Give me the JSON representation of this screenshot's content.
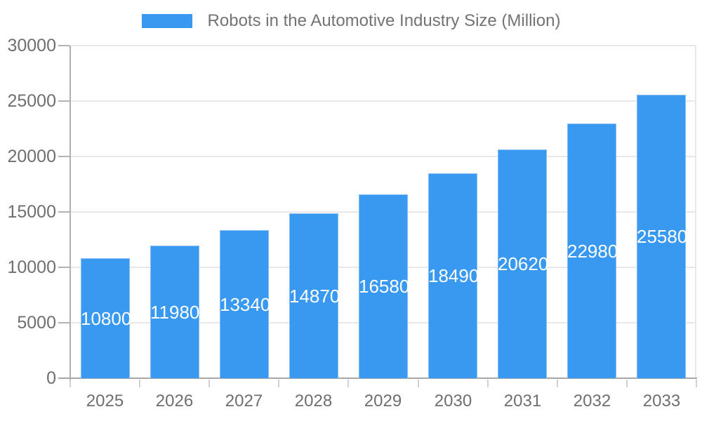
{
  "chart_data": {
    "type": "bar",
    "title": "Robots in the Automotive Industry Size (Million)",
    "categories": [
      "2025",
      "2026",
      "2027",
      "2028",
      "2029",
      "2030",
      "2031",
      "2032",
      "2033"
    ],
    "values": [
      10800,
      11980,
      13340,
      14870,
      16580,
      18490,
      20620,
      22980,
      25580
    ],
    "xlabel": "",
    "ylabel": "",
    "ylim": [
      0,
      30000
    ],
    "ytick_step": 5000,
    "ytick_labels": [
      "0",
      "5000",
      "10000",
      "15000",
      "20000",
      "25000",
      "30000"
    ],
    "grid": true,
    "legend_position": "top-center",
    "colors": {
      "bar": "#3999f0",
      "bar_edge": "#85bdf4",
      "value_label": "#ffffff",
      "axis_line": "#b0b0b0",
      "bottom_axis_line": "#a8a8a8",
      "gridline": "#e8e8e8",
      "tick_label": "#6f6f6f",
      "legend_text": "#737373"
    }
  }
}
